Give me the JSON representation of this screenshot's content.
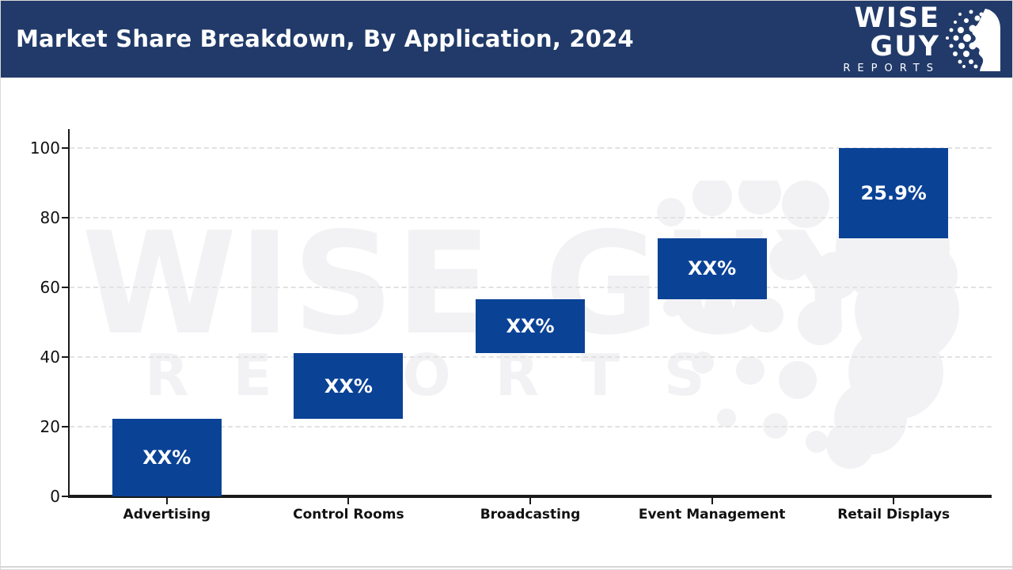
{
  "header": {
    "title": "Market Share Breakdown, By Application, 2024",
    "logo": {
      "line1": "WISE GUY",
      "line2": "REPORTS"
    }
  },
  "watermark": {
    "line1": "WISE GUY",
    "line2": "REPORTS"
  },
  "colors": {
    "header_bg": "#213A69",
    "bar": "#0A4296",
    "bar_label_text": "#FFFFFF",
    "gridline": "#E2E2E2",
    "axis": "#1A1A1A",
    "watermark": "#F2F2F4"
  },
  "chart_data": {
    "type": "bar",
    "subtype": "waterfall-floating-bars",
    "title": "Market Share Breakdown, By Application, 2024",
    "xlabel": "",
    "ylabel": "",
    "categories": [
      "Advertising",
      "Control Rooms",
      "Broadcasting",
      "Event Management",
      "Retail Displays"
    ],
    "series": [
      {
        "name": "Market Share",
        "segments": [
          {
            "start": 0,
            "end": 22.2
          },
          {
            "start": 22.2,
            "end": 41.1
          },
          {
            "start": 41.1,
            "end": 56.6
          },
          {
            "start": 56.6,
            "end": 74.1
          },
          {
            "start": 74.1,
            "end": 100
          }
        ]
      }
    ],
    "bar_labels": [
      "XX%",
      "XX%",
      "XX%",
      "XX%",
      "25.9%"
    ],
    "ylim": [
      0,
      100
    ],
    "yticks": [
      0,
      20,
      40,
      60,
      80,
      100
    ],
    "grid": "horizontal dashed",
    "legend": "none"
  }
}
